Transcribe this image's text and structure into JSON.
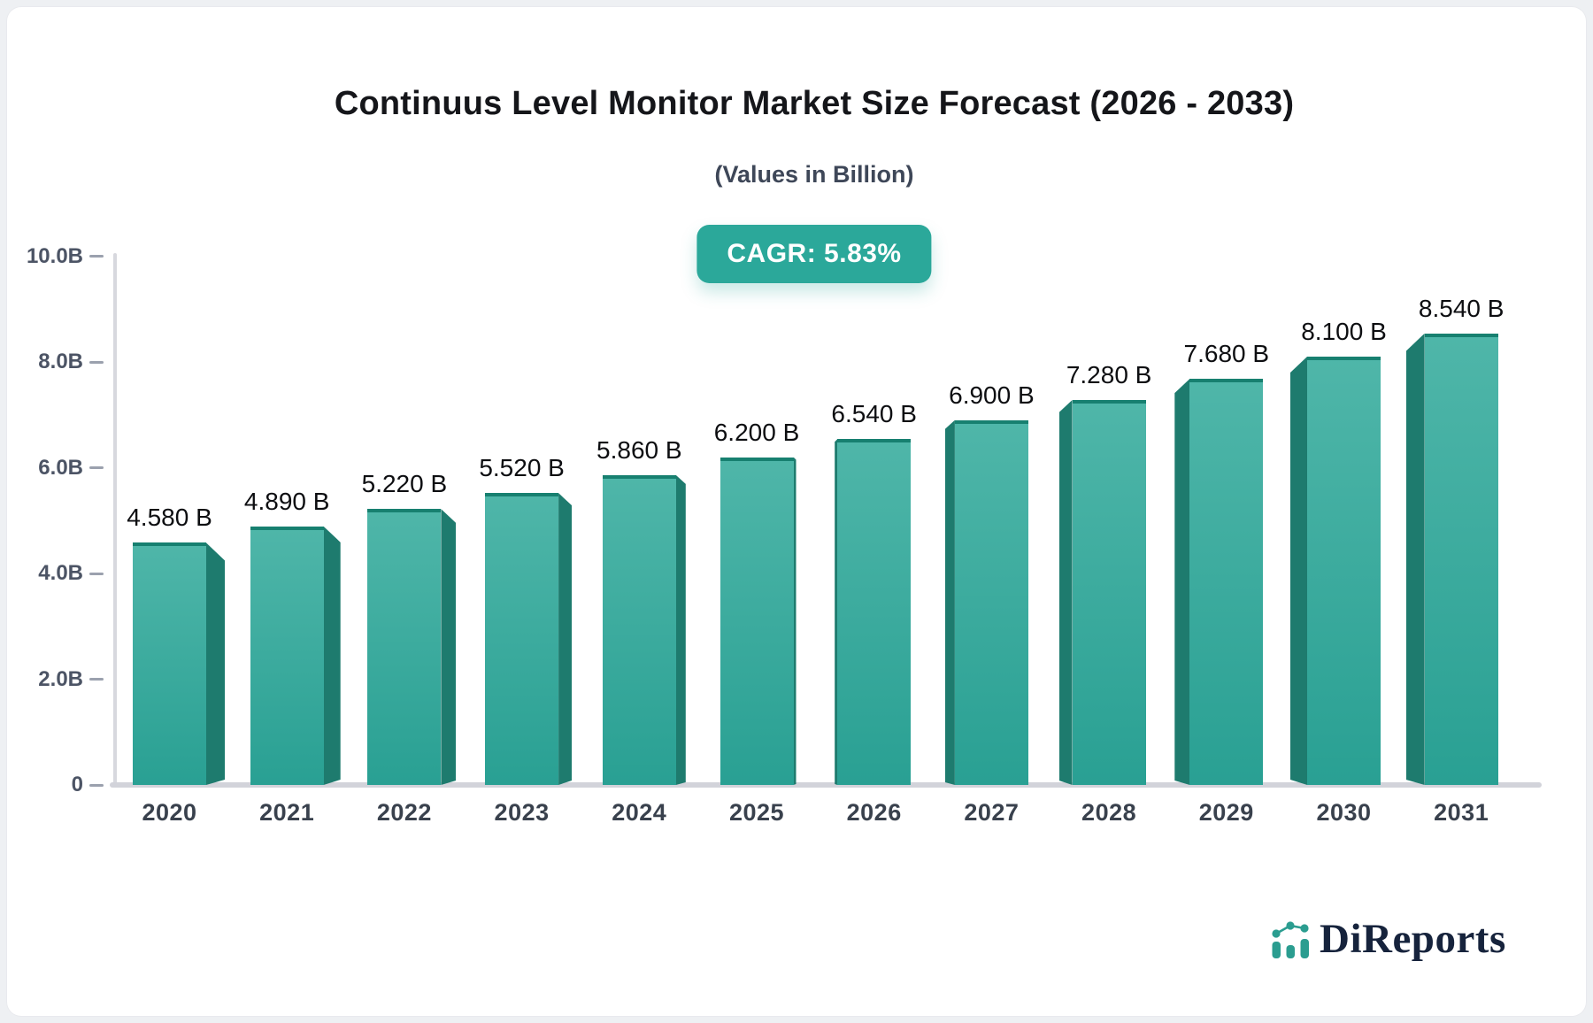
{
  "chart_data": {
    "type": "bar",
    "title": "Continuus Level Monitor Market Size Forecast (2026 - 2033)",
    "subtitle": "(Values in Billion)",
    "cagr_badge": "CAGR: 5.83%",
    "categories": [
      "2020",
      "2021",
      "2022",
      "2023",
      "2024",
      "2025",
      "2026",
      "2027",
      "2028",
      "2029",
      "2030",
      "2031"
    ],
    "values": [
      4.58,
      4.89,
      5.22,
      5.52,
      5.86,
      6.2,
      6.54,
      6.9,
      7.28,
      7.68,
      8.1,
      8.54
    ],
    "value_labels": [
      "4.580 B",
      "4.890 B",
      "5.220 B",
      "5.520 B",
      "5.860 B",
      "6.200 B",
      "6.540 B",
      "6.900 B",
      "7.280 B",
      "7.680 B",
      "8.100 B",
      "8.540 B"
    ],
    "xlabel": "",
    "ylabel": "",
    "ylim": [
      0,
      10
    ],
    "yticks": [
      {
        "value": 10,
        "label": "10.0B"
      },
      {
        "value": 8,
        "label": "8.0B"
      },
      {
        "value": 6,
        "label": "6.0B"
      },
      {
        "value": 4,
        "label": "4.0B"
      },
      {
        "value": 2,
        "label": "2.0B"
      },
      {
        "value": 0,
        "label": "0"
      }
    ],
    "grid": false,
    "legend": false
  },
  "logo": {
    "text": "DiReports"
  },
  "colors": {
    "accent": "#2ba89a",
    "bar_front_top": "#4fb6a9",
    "bar_front_bottom": "#29a093",
    "bar_side": "#1e7b6e",
    "bar_top_edge": "#178070",
    "badge_bg": "#2ba89a",
    "badge_text": "#ffffff",
    "title_text": "#15161a",
    "subtitle_text": "#3e4758",
    "value_label_text": "#0d0e11",
    "year_label_text": "#39414d",
    "ytick_label_text": "#4c5465",
    "axis": "#d7d8de",
    "baseline": "#d2d3da",
    "logo_text": "#16233c",
    "logo_icon": "#2b9d90"
  }
}
